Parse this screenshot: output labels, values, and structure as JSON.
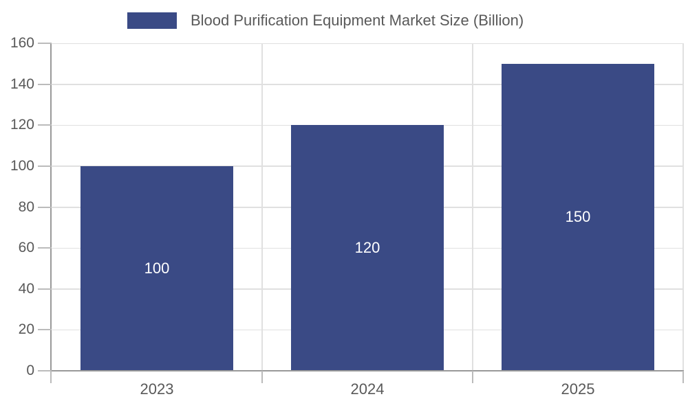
{
  "legend": {
    "label": "Blood Purification Equipment Market Size (Billion)"
  },
  "chart_data": {
    "type": "bar",
    "title": "Blood Purification Equipment Market Size (Billion)",
    "categories": [
      "2023",
      "2024",
      "2025"
    ],
    "series": [
      {
        "name": "Blood Purification Equipment Market Size (Billion)",
        "values": [
          100,
          120,
          150
        ]
      }
    ],
    "data_labels": [
      "100",
      "120",
      "150"
    ],
    "xlabel": "",
    "ylabel": "",
    "ylim": [
      0,
      160
    ],
    "yticks": [
      0,
      20,
      40,
      60,
      80,
      100,
      120,
      140,
      160
    ],
    "grid": true,
    "legend_position": "top",
    "colors": {
      "bar": "#3A4A85",
      "bar_label": "#FFFFFF",
      "axis_text": "#595959",
      "axis_line": "#999999",
      "tick": "#BBBBBB",
      "gridline": "#E0E0E0",
      "background": "#FFFFFF"
    }
  }
}
